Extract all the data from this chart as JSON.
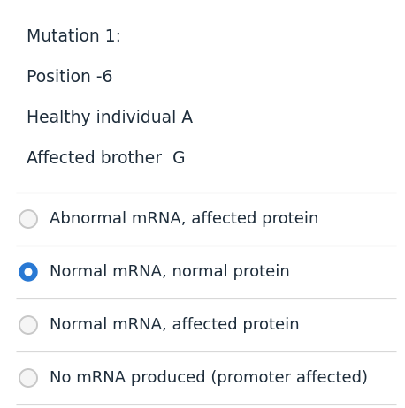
{
  "bg_color": "#ffffff",
  "text_color": "#1e2d3b",
  "radio_unselected_edge": "#c8c8c8",
  "radio_unselected_fill": "#f5f5f5",
  "radio_selected_fill": "#2979d4",
  "radio_selected_dot": "#ffffff",
  "divider_color": "#d8d8d8",
  "info_lines": [
    "Mutation 1:",
    "Position -6",
    "Healthy individual A",
    "Affected brother  G"
  ],
  "options": [
    {
      "text": "Abnormal mRNA, affected protein",
      "selected": false
    },
    {
      "text": "Normal mRNA, normal protein",
      "selected": true
    },
    {
      "text": "Normal mRNA, affected protein",
      "selected": false
    },
    {
      "text": "No mRNA produced (promoter affected)",
      "selected": false
    }
  ],
  "info_fontsize": 13.5,
  "option_fontsize": 13.0,
  "fig_width": 4.58,
  "fig_height": 4.62,
  "dpi": 100
}
